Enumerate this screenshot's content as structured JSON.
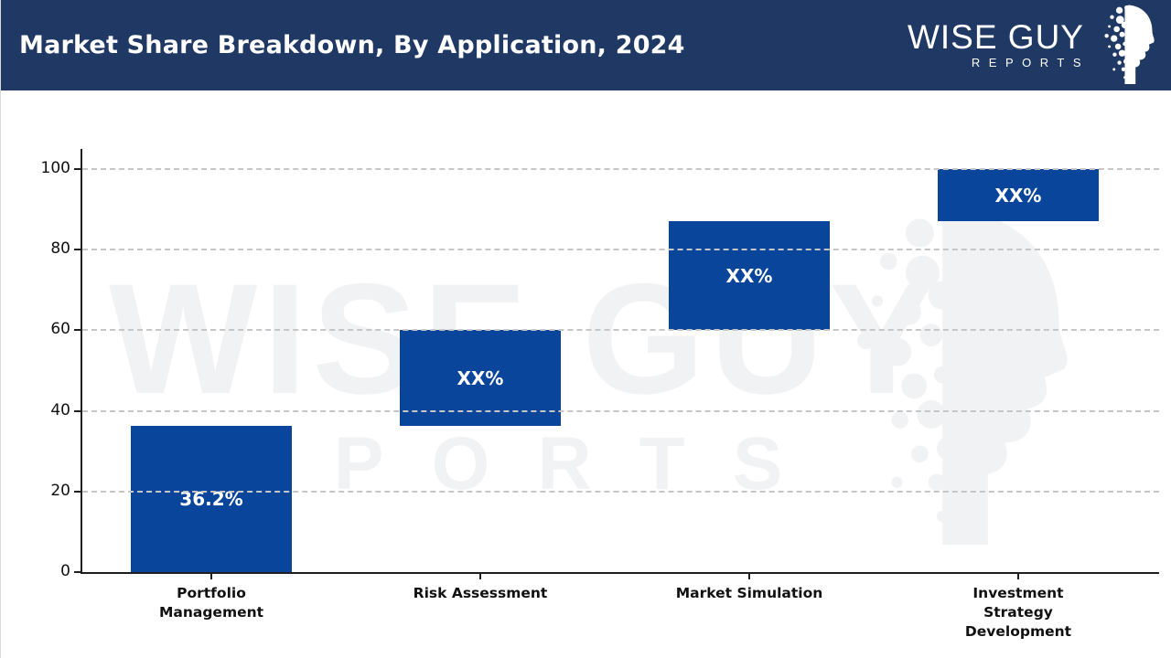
{
  "header": {
    "title": "Market Share Breakdown, By Application, 2024",
    "bg_color": "#203864",
    "logo": {
      "line1": "WISE GUY",
      "line2": "REPORTS"
    }
  },
  "watermark": {
    "line1": "WISE GUY",
    "line2": "REPORTS"
  },
  "chart_data": {
    "type": "bar",
    "subtype": "waterfall",
    "title": "Market Share Breakdown, By Application, 2024",
    "xlabel": "",
    "ylabel": "",
    "ylim": [
      0,
      105
    ],
    "y_ticks": [
      0,
      20,
      40,
      60,
      80,
      100
    ],
    "grid": "horizontal dashed",
    "legend": "none",
    "bar_color": "#0a459c",
    "value_label_color": "#ffffff",
    "categories": [
      "Portfolio\nManagement",
      "Risk Assessment",
      "Market Simulation",
      "Investment\nStrategy\nDevelopment"
    ],
    "bars": [
      {
        "category": "Portfolio Management",
        "start": 0,
        "end": 36.2,
        "label": "36.2%"
      },
      {
        "category": "Risk Assessment",
        "start": 36.2,
        "end": 60,
        "label": "XX%"
      },
      {
        "category": "Market Simulation",
        "start": 60,
        "end": 87,
        "label": "XX%"
      },
      {
        "category": "Investment Strategy Development",
        "start": 87,
        "end": 100,
        "label": "XX%"
      }
    ]
  }
}
